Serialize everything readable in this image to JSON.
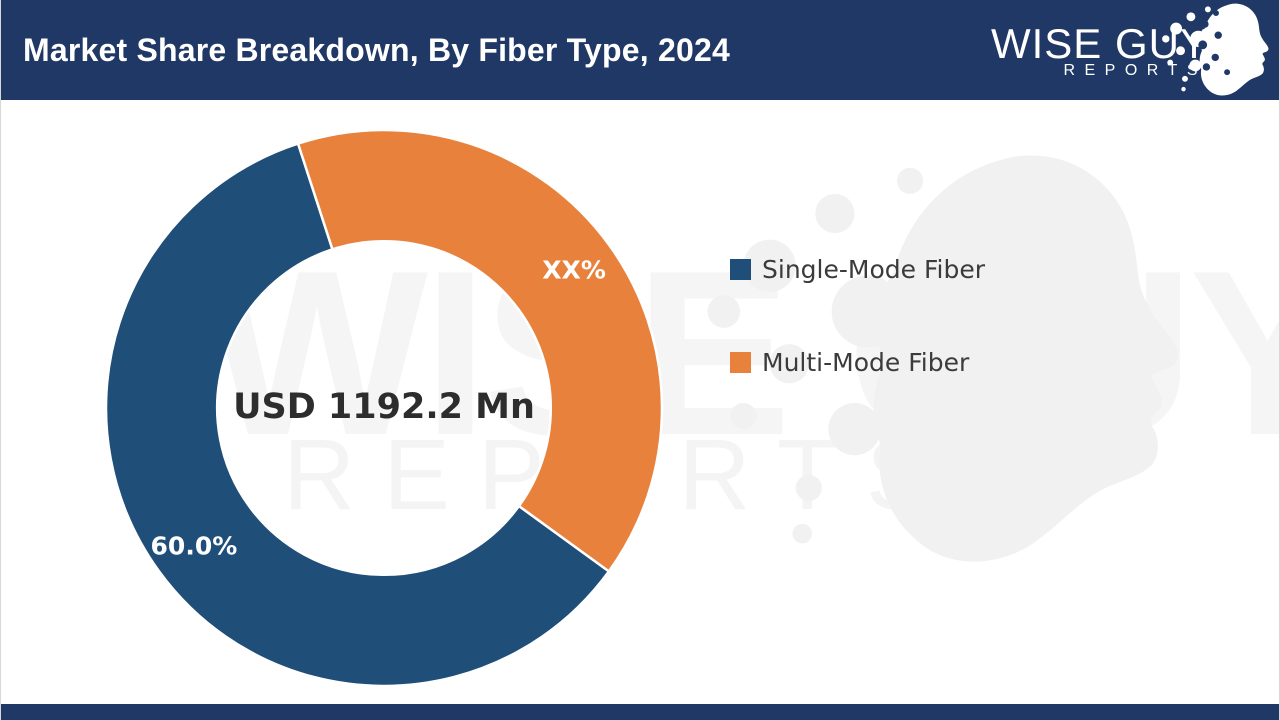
{
  "header": {
    "title": "Market Share Breakdown, By Fiber Type, 2024",
    "logo": {
      "brand_line1": "WISE GUY",
      "brand_line2": "REPORTS"
    }
  },
  "chart_data": {
    "type": "pie",
    "subtype": "donut",
    "title": "Market Share Breakdown, By Fiber Type, 2024",
    "center_label": "USD 1192.2 Mn",
    "legend_position": "right",
    "start_angle_deg": 108,
    "counterclockwise": true,
    "inner_radius_ratio": 0.6,
    "categories": [
      "Single-Mode Fiber",
      "Multi-Mode Fiber"
    ],
    "values": [
      60,
      40
    ],
    "slices": [
      {
        "label": "Single-Mode Fiber",
        "value": 60,
        "pct_text": "60.0%",
        "color": "#1f4e78"
      },
      {
        "label": "Multi-Mode Fiber",
        "value": 40,
        "pct_text": "XX%",
        "color": "#e8813c"
      }
    ]
  },
  "watermark": {
    "line1": "WISE GUY",
    "line2": "REPORTS"
  },
  "colors": {
    "header_navy": "#203865",
    "footer_navy": "#203865",
    "slice_blue": "#1f4e78",
    "slice_orange": "#e8813c",
    "legend_text": "#3b3b3b",
    "center_text": "#2d2d2d",
    "watermark_gray": "#f3f3f3"
  }
}
